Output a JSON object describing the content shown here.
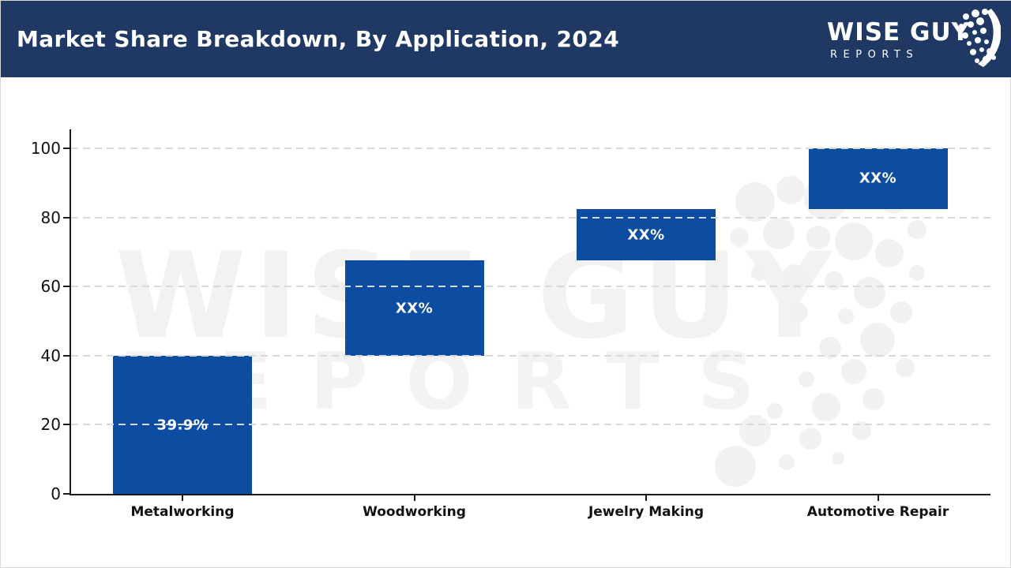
{
  "header": {
    "title": "Market Share Breakdown, By Application, 2024",
    "logo_line1": "WISE GUY",
    "logo_line2": "REPORTS"
  },
  "watermark": {
    "line1": "WISE GUY",
    "line2": "REPORTS"
  },
  "chart_data": {
    "type": "bar",
    "variant": "waterfall",
    "title": "Market Share Breakdown, By Application, 2024",
    "categories": [
      "Metalworking",
      "Woodworking",
      "Jewelry Making",
      "Automotive Repair"
    ],
    "segments": [
      {
        "category": "Metalworking",
        "start": 0,
        "end": 39.9,
        "label": "39.9%"
      },
      {
        "category": "Woodworking",
        "start": 39.9,
        "end": 67.5,
        "label": "XX%"
      },
      {
        "category": "Jewelry Making",
        "start": 67.5,
        "end": 82.5,
        "label": "XX%"
      },
      {
        "category": "Automotive Repair",
        "start": 82.5,
        "end": 100,
        "label": "XX%"
      }
    ],
    "xlabel": "",
    "ylabel": "",
    "yticks": [
      0,
      20,
      40,
      60,
      80,
      100
    ],
    "ylim": [
      0,
      105
    ],
    "grid": true,
    "grid_style": "dashed",
    "legend": false,
    "colors": {
      "bar": "#0c4da2",
      "header_bg": "#1f3864",
      "grid": "#d9d9d9",
      "axis": "#1a1a1a",
      "bar_label_text": "#ffffff",
      "tick_text": "#111111"
    }
  }
}
